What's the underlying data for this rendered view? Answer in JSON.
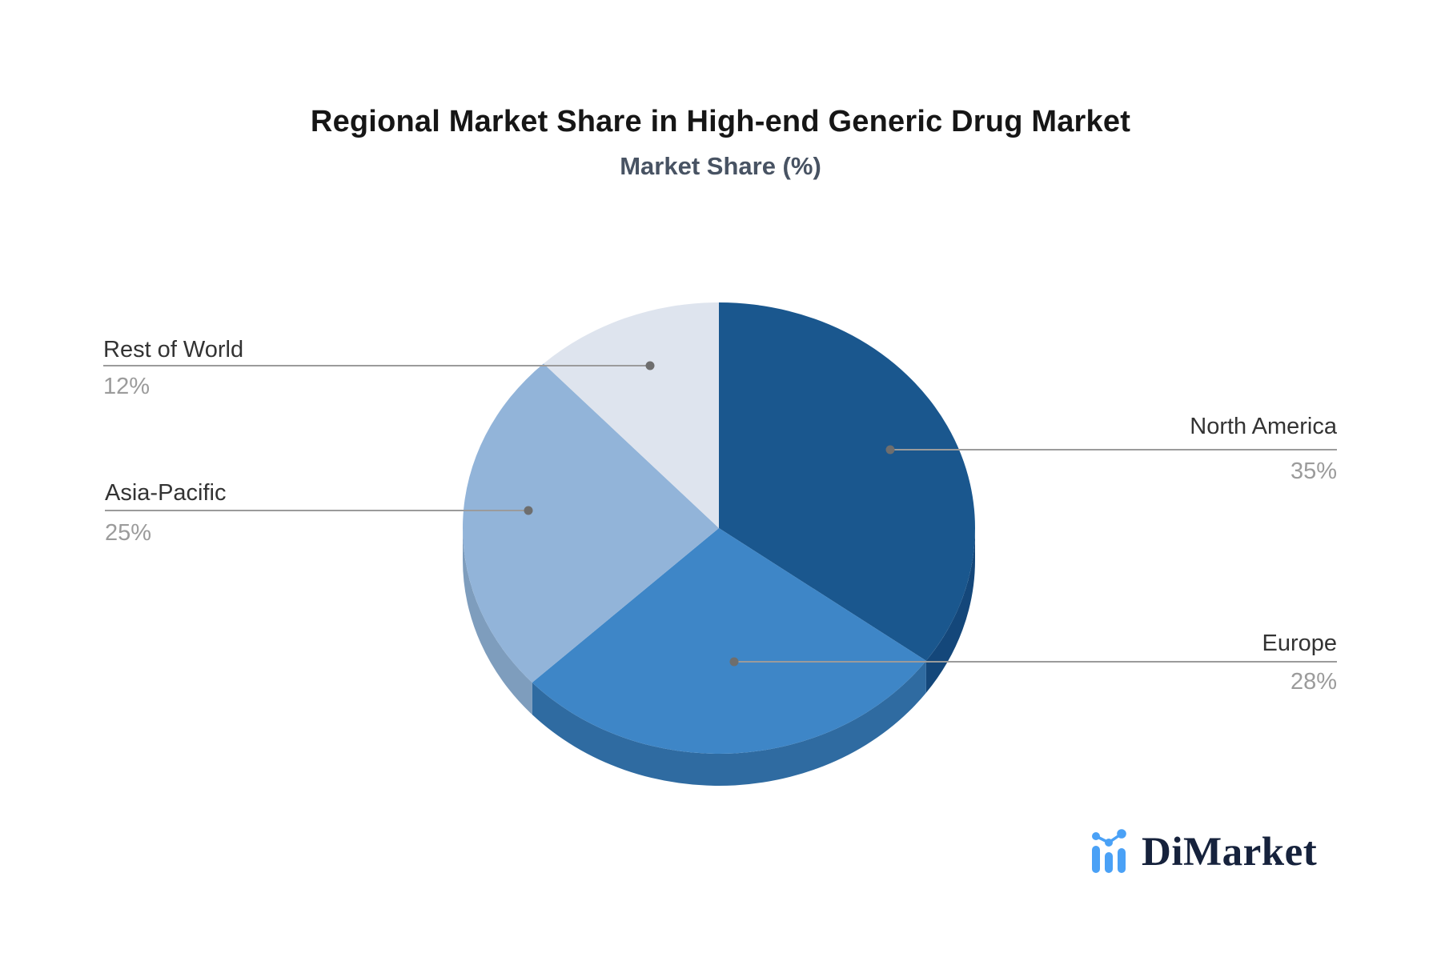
{
  "header": {
    "title": "Regional Market Share in High-end Generic Drug Market",
    "subtitle": "Market Share (%)"
  },
  "chart_data": {
    "type": "pie",
    "style": "3d",
    "title": "Regional Market Share in High-end Generic Drug Market",
    "subtitle": "Market Share (%)",
    "unit": "%",
    "start_angle_deg": 0,
    "direction": "clockwise",
    "legend": "none",
    "slices": [
      {
        "label": "North America",
        "value": 35,
        "display": "35%",
        "color": "#1A578E",
        "side_color": "#14477A",
        "label_side": "right"
      },
      {
        "label": "Europe",
        "value": 28,
        "display": "28%",
        "color": "#3E86C7",
        "side_color": "#2F6BA1",
        "label_side": "right"
      },
      {
        "label": "Asia-Pacific",
        "value": 25,
        "display": "25%",
        "color": "#92B4D9",
        "side_color": "#7E9DBD",
        "label_side": "left"
      },
      {
        "label": "Rest of World",
        "value": 12,
        "display": "12%",
        "color": "#DEE4EE",
        "side_color": "#C3CEDC",
        "label_side": "left"
      }
    ]
  },
  "branding": {
    "logo_text": "DiMarket",
    "logo_text_color": "#16223C",
    "logo_icon": "bar-line-chart-icon",
    "logo_icon_color": "#4AA1F6"
  },
  "colors": {
    "background": "#FFFFFF",
    "leader_line": "#9B9B9B",
    "leader_dot": "#6E6E6E",
    "label_text": "#333333",
    "value_text": "#9B9B9B"
  }
}
